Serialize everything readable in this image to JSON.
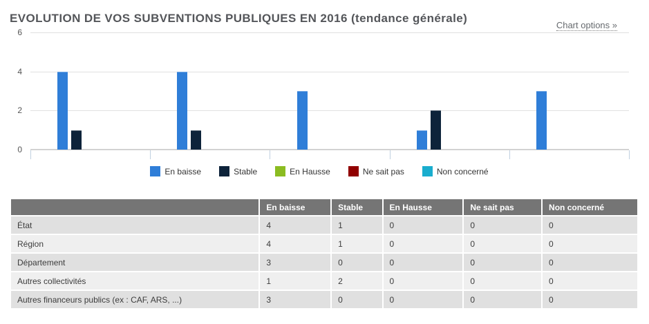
{
  "page": {
    "title": "EVOLUTION DE VOS SUBVENTIONS PUBLIQUES EN 2016 (tendance générale)",
    "chart_options_label": "Chart options »"
  },
  "colors": {
    "en_baisse": "#2f7ed8",
    "stable": "#0d233a",
    "en_hausse": "#8bbc21",
    "ne_sait_pas": "#910000",
    "non_concerne": "#1aadce",
    "table_header_bg": "#757575",
    "table_row_odd_bg": "#e0e0e0",
    "table_row_even_bg": "#efefef",
    "gridline": "#e0e0e0",
    "axis_tick": "#c0d0e0"
  },
  "chart_data": {
    "type": "bar",
    "title": "EVOLUTION DE VOS SUBVENTIONS PUBLIQUES EN 2016 (tendance générale)",
    "categories": [
      "État",
      "Région",
      "Département",
      "Autres collectivités",
      "Autres financeurs publics (ex : CAF, ARS, ...)"
    ],
    "series": [
      {
        "name": "En baisse",
        "color": "#2f7ed8",
        "values": [
          4,
          4,
          3,
          1,
          3
        ]
      },
      {
        "name": "Stable",
        "color": "#0d233a",
        "values": [
          1,
          1,
          0,
          2,
          0
        ]
      },
      {
        "name": "En Hausse",
        "color": "#8bbc21",
        "values": [
          0,
          0,
          0,
          0,
          0
        ]
      },
      {
        "name": "Ne sait pas",
        "color": "#910000",
        "values": [
          0,
          0,
          0,
          0,
          0
        ]
      },
      {
        "name": "Non concerné",
        "color": "#1aadce",
        "values": [
          0,
          0,
          0,
          0,
          0
        ]
      }
    ],
    "xlabel": "",
    "ylabel": "",
    "ylim": [
      0,
      6
    ],
    "y_ticks": [
      0,
      2,
      4,
      6
    ],
    "x_tick_labels_visible": false,
    "grid": true,
    "legend_position": "bottom"
  },
  "table": {
    "columns": [
      "",
      "En baisse",
      "Stable",
      "En Hausse",
      "Ne sait pas",
      "Non concerné"
    ],
    "rows": [
      {
        "label": "État",
        "values": [
          4,
          1,
          0,
          0,
          0
        ]
      },
      {
        "label": "Région",
        "values": [
          4,
          1,
          0,
          0,
          0
        ]
      },
      {
        "label": "Département",
        "values": [
          3,
          0,
          0,
          0,
          0
        ]
      },
      {
        "label": "Autres collectivités",
        "values": [
          1,
          2,
          0,
          0,
          0
        ]
      },
      {
        "label": "Autres financeurs publics (ex : CAF, ARS, ...)",
        "values": [
          3,
          0,
          0,
          0,
          0
        ]
      }
    ]
  }
}
